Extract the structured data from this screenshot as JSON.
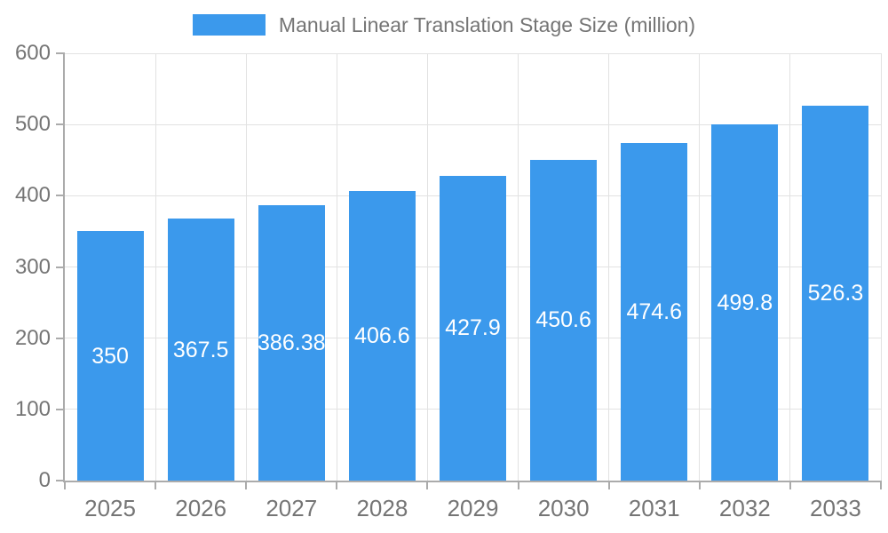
{
  "chart_data": {
    "type": "bar",
    "title": "",
    "legend_label": "Manual Linear Translation Stage Size (million)",
    "legend_position": "top",
    "categories": [
      "2025",
      "2026",
      "2027",
      "2028",
      "2029",
      "2030",
      "2031",
      "2032",
      "2033"
    ],
    "series": [
      {
        "name": "Manual Linear Translation Stage Size (million)",
        "values": [
          350,
          367.5,
          386.38,
          406.6,
          427.9,
          450.6,
          474.6,
          499.8,
          526.3
        ]
      }
    ],
    "value_labels": [
      "350",
      "367.5",
      "386.38",
      "406.6",
      "427.9",
      "450.6",
      "474.6",
      "499.8",
      "526.3"
    ],
    "xlabel": "",
    "ylabel": "",
    "ylim": [
      0,
      600
    ],
    "ytick_interval": 100,
    "yticks": [
      "0",
      "100",
      "200",
      "300",
      "400",
      "500",
      "600"
    ],
    "grid": true,
    "colors": {
      "bar": "#3B99EC",
      "grid": "#E2E2E2",
      "axis": "#ABABAB",
      "text": "#757575",
      "value_label": "#FFFFFF",
      "background": "#FFFFFF"
    }
  }
}
